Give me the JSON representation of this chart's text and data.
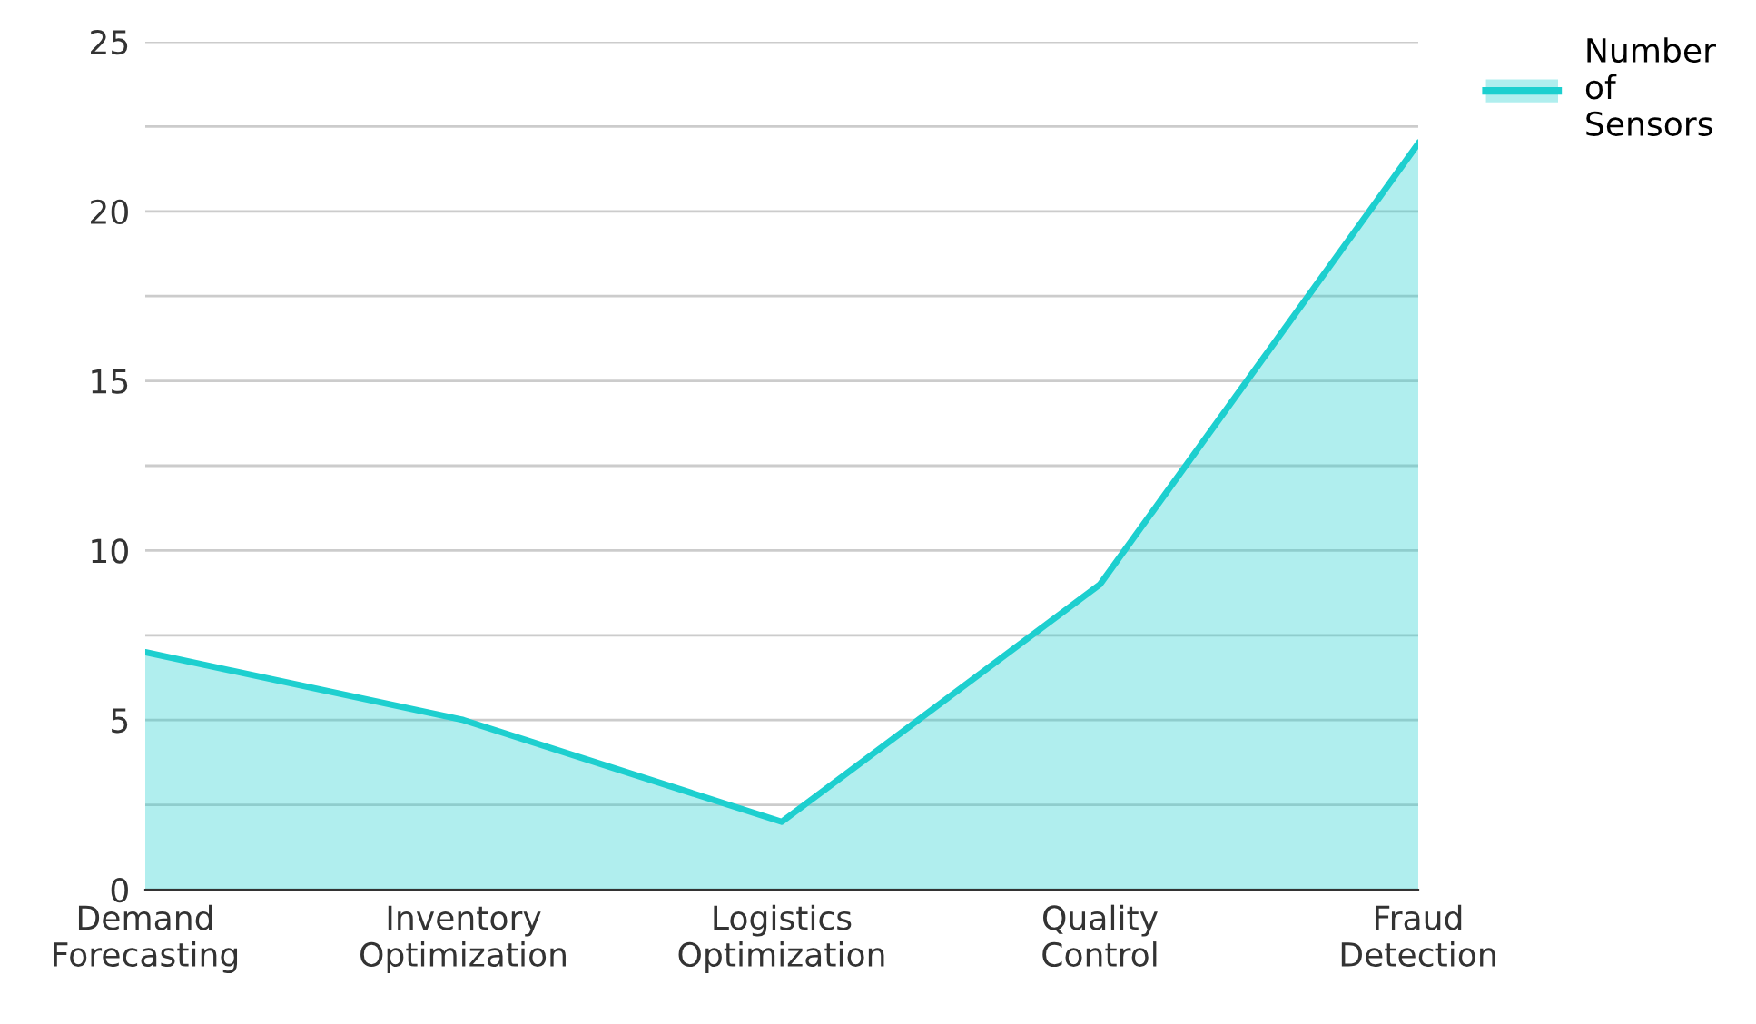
{
  "chart_data": {
    "type": "area",
    "categories": [
      "Demand Forecasting",
      "Inventory Optimization",
      "Logistics Optimization",
      "Quality Control",
      "Fraud Detection"
    ],
    "series": [
      {
        "name": "Number of Sensors",
        "color": "#1dcfcf",
        "values": [
          7,
          5,
          2,
          9,
          22
        ]
      }
    ],
    "ylim": [
      0,
      25
    ],
    "yticks": [
      0,
      {
        "value": 2.5,
        "label": null
      },
      5,
      {
        "value": 7.5,
        "label": null
      },
      10,
      {
        "value": 12.5,
        "label": null
      },
      15,
      {
        "value": 17.5,
        "label": null
      },
      20,
      {
        "value": 22.5,
        "label": null
      },
      25
    ],
    "grid": "y",
    "legend": "top right"
  }
}
